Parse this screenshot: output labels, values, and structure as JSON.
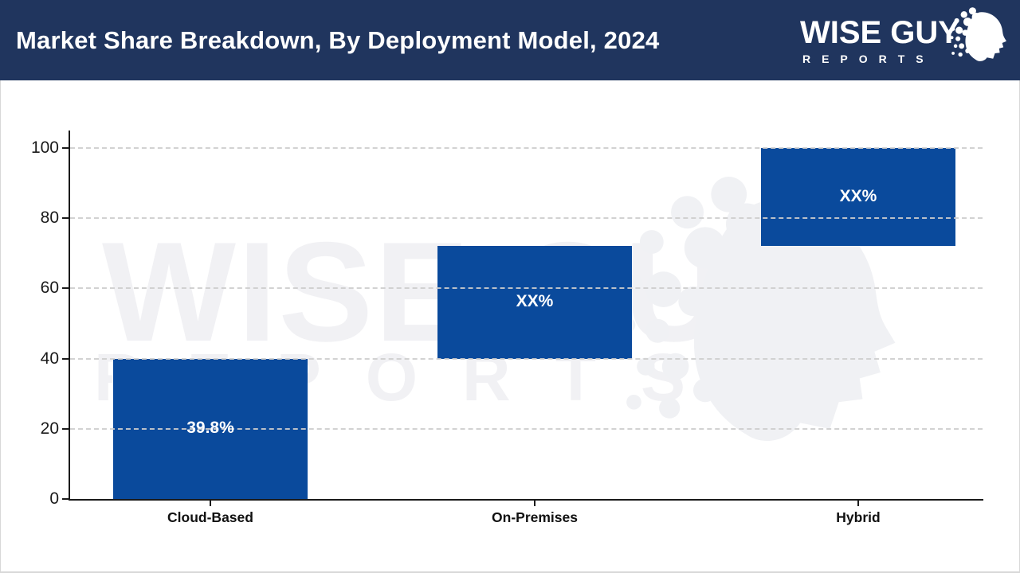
{
  "header": {
    "title": "Market Share Breakdown, By Deployment Model, 2024",
    "logo": {
      "line1": "WISE GUY",
      "line2": "REPORTS"
    }
  },
  "watermark": {
    "line1": "WISE GUY",
    "line2": "REPORTS"
  },
  "colors": {
    "header_bg": "#20355E",
    "bar": "#0A4A9C",
    "axis": "#1a1a1a",
    "gridline": "#d2d2d2",
    "watermark": "#f1f1f4",
    "bar_label_text": "#ffffff"
  },
  "chart_data": {
    "type": "bar",
    "subtype": "waterfall-floating-bars",
    "title": "Market Share Breakdown, By Deployment Model, 2024",
    "xlabel": "",
    "ylabel": "",
    "categories": [
      "Cloud-Based",
      "On-Premises",
      "Hybrid"
    ],
    "segments": [
      {
        "category": "Cloud-Based",
        "start": 0,
        "end": 39.8,
        "label": "39.8%"
      },
      {
        "category": "On-Premises",
        "start": 40,
        "end": 72,
        "label": "XX%"
      },
      {
        "category": "Hybrid",
        "start": 72,
        "end": 100,
        "label": "XX%"
      }
    ],
    "ylim": [
      0,
      100
    ],
    "yticks": [
      0,
      20,
      40,
      60,
      80,
      100
    ],
    "grid": "dashed-horizontal",
    "legend": "none",
    "bar_color": "#0A4A9C"
  }
}
